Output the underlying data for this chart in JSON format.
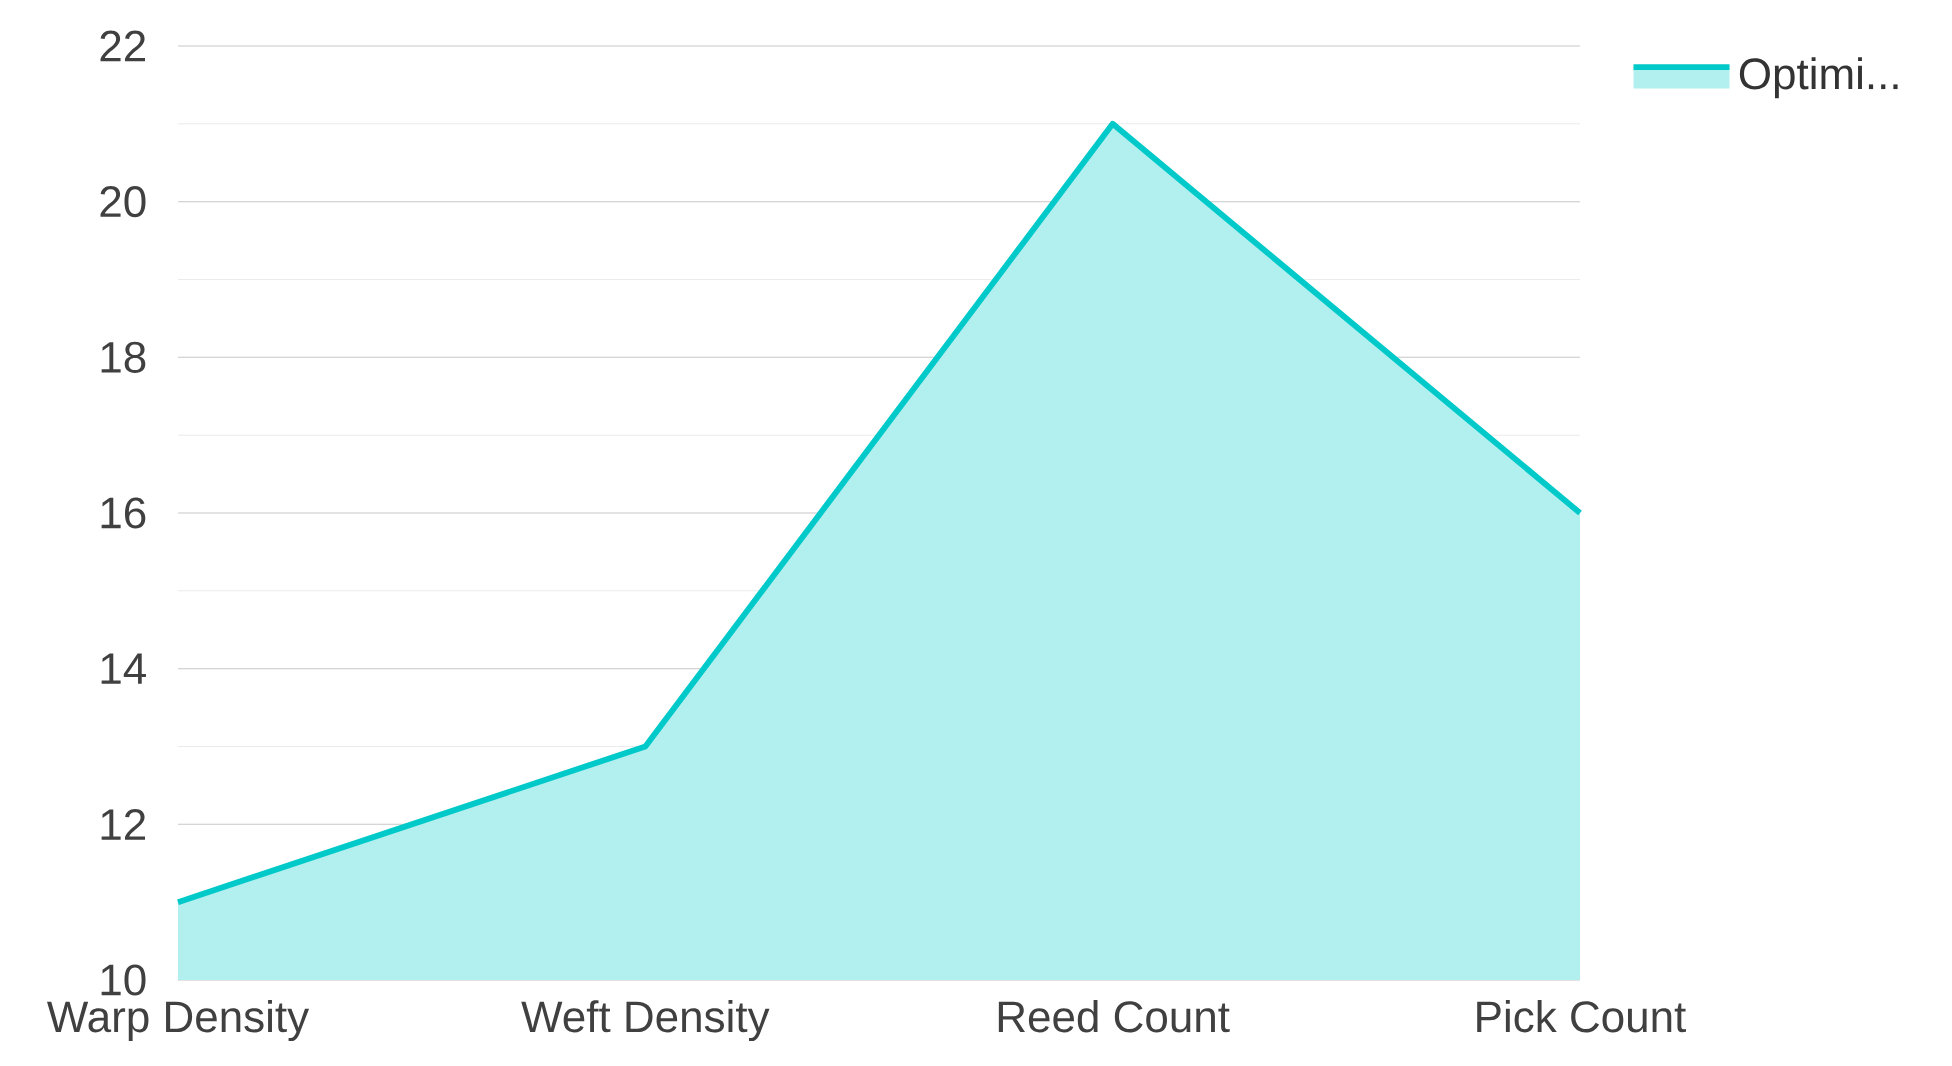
{
  "chart_data": {
    "type": "area",
    "categories": [
      "Warp Density",
      "Weft Density",
      "Reed Count",
      "Pick Count"
    ],
    "series": [
      {
        "name": "Optimi...",
        "color": "#00c9c9",
        "values": [
          11,
          13,
          21,
          16
        ]
      }
    ],
    "ylim": [
      10,
      22
    ],
    "yticks": [
      10,
      12,
      14,
      16,
      18,
      20,
      22
    ],
    "grid": "y",
    "legend": "top right"
  }
}
